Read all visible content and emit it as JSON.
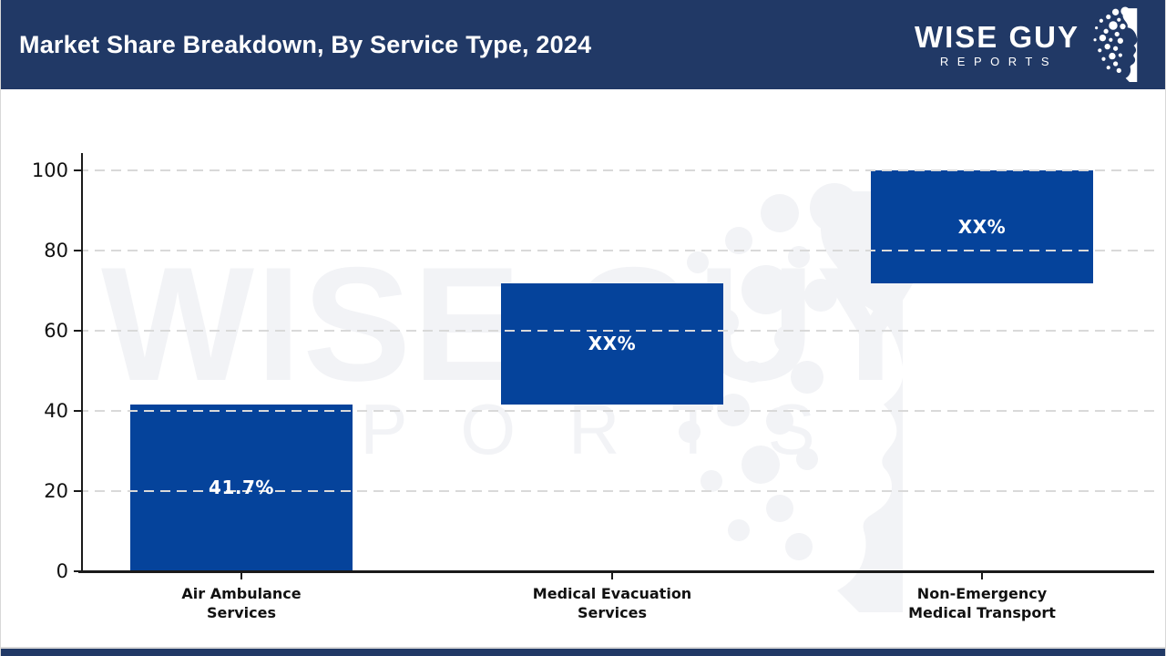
{
  "header": {
    "title": "Market Share Breakdown, By Service Type, 2024",
    "logo": {
      "line1": "WISE GUY",
      "line2": "REPORTS"
    }
  },
  "watermark": {
    "line1": "WISE GUY",
    "line2": "REPORTS"
  },
  "colors": {
    "header_navy": "#213966",
    "bar_blue": "#05439b",
    "watermark_gray": "#f2f3f6",
    "gridline_gray": "#d9d9d9"
  },
  "chart_data": {
    "type": "bar",
    "subtype": "waterfall",
    "title": "Market Share Breakdown, By Service Type, 2024",
    "xlabel": "",
    "ylabel": "",
    "ylim": [
      0,
      105
    ],
    "yticks": [
      0,
      20,
      40,
      60,
      80,
      100
    ],
    "grid": "horizontal-dashed",
    "legend": "none",
    "categories": [
      "Air Ambulance Services",
      "Medical Evacuation Services",
      "Non-Emergency Medical Transport"
    ],
    "bars": [
      {
        "category_lines": [
          "Air Ambulance",
          "Services"
        ],
        "label": "41.7%",
        "start": 0,
        "end": 41.7
      },
      {
        "category_lines": [
          "Medical Evacuation",
          "Services"
        ],
        "label": "XX%",
        "start": 41.7,
        "end": 71.8
      },
      {
        "category_lines": [
          "Non-Emergency",
          "Medical Transport"
        ],
        "label": "XX%",
        "start": 71.8,
        "end": 100
      }
    ]
  }
}
